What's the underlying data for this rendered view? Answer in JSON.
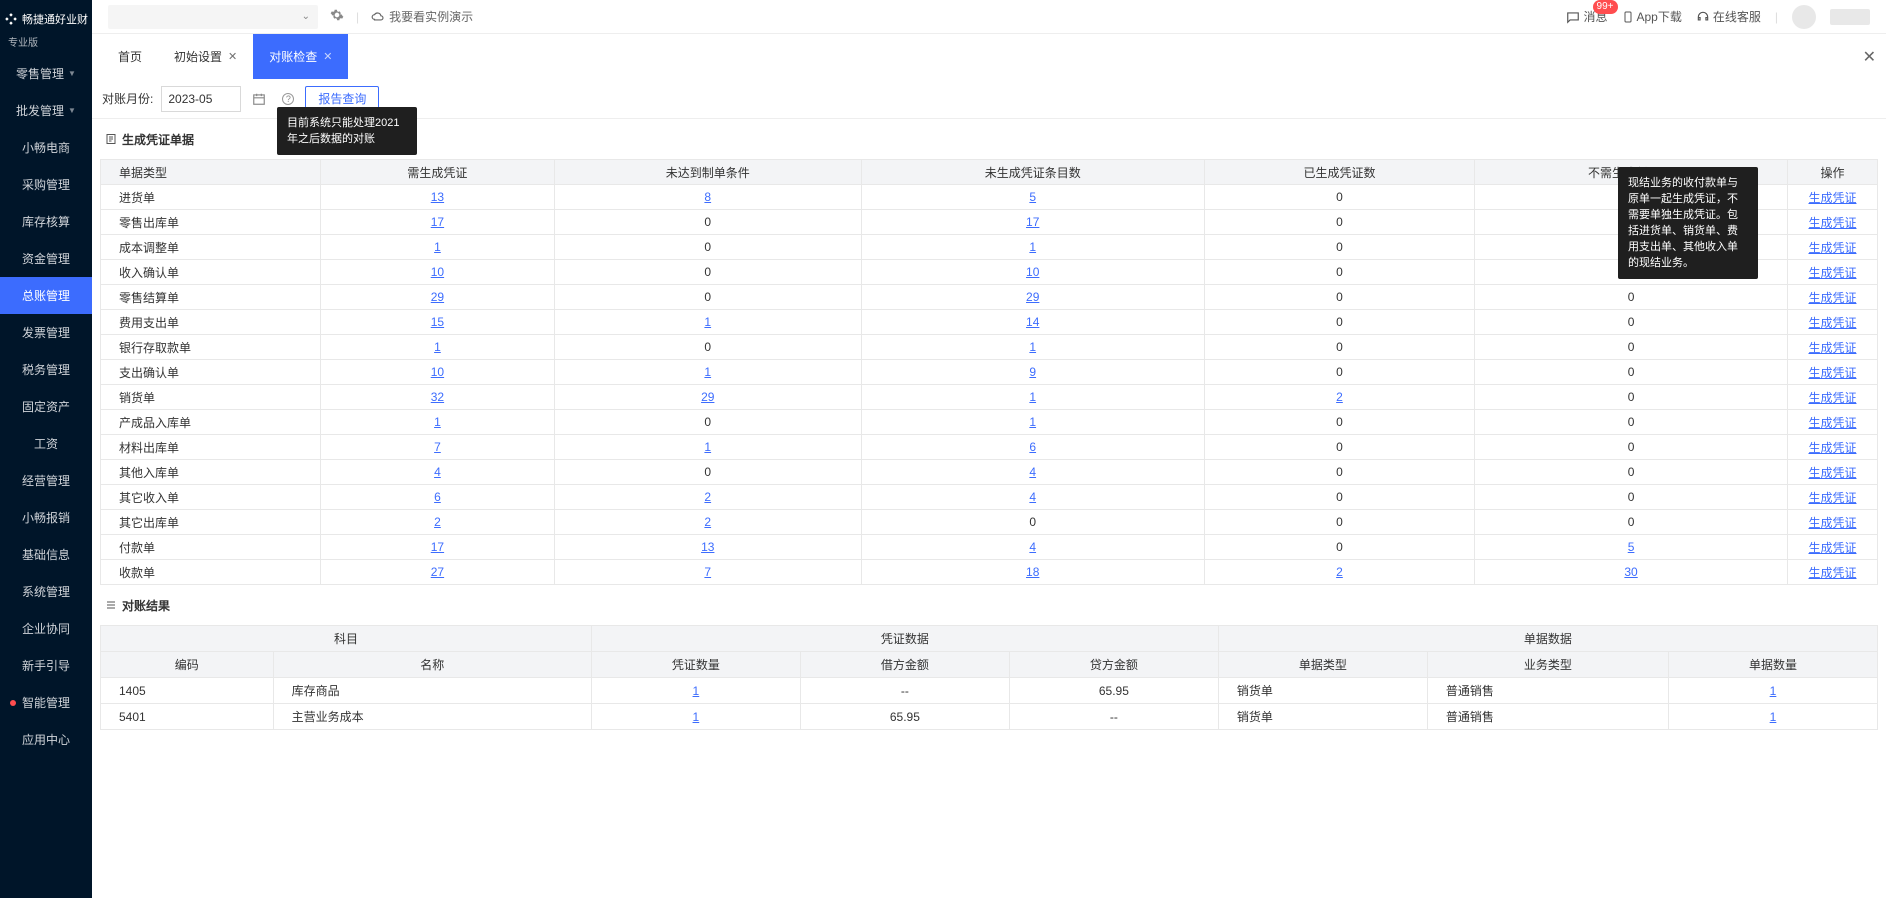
{
  "brand": {
    "name": "畅捷通好业财",
    "edition": "专业版"
  },
  "sidebar": [
    {
      "label": "零售管理",
      "caret": true
    },
    {
      "label": "批发管理",
      "caret": true
    },
    {
      "label": "小畅电商"
    },
    {
      "label": "采购管理"
    },
    {
      "label": "库存核算"
    },
    {
      "label": "资金管理"
    },
    {
      "label": "总账管理",
      "active": true
    },
    {
      "label": "发票管理"
    },
    {
      "label": "税务管理"
    },
    {
      "label": "固定资产"
    },
    {
      "label": "工资"
    },
    {
      "label": "经营管理"
    },
    {
      "label": "小畅报销"
    },
    {
      "label": "基础信息"
    },
    {
      "label": "系统管理"
    },
    {
      "label": "企业协同"
    },
    {
      "label": "新手引导"
    },
    {
      "label": "智能管理",
      "dot": true
    },
    {
      "label": "应用中心"
    }
  ],
  "topbar": {
    "demo": "我要看实例演示",
    "msg": "消息",
    "msg_badge": "99+",
    "app": "App下载",
    "service": "在线客服"
  },
  "tabs": {
    "home": "首页",
    "t1": "初始设置",
    "t2": "对账检查"
  },
  "toolbar": {
    "label": "对账月份:",
    "date": "2023-05",
    "report": "报告查询",
    "tip1": "目前系统只能处理2021年之后数据的对账",
    "tip2": "现结业务的收付款单与原单一起生成凭证，不需要单独生成凭证。包括进货单、销货单、费用支出单、其他收入单的现结业务。"
  },
  "section1": {
    "title": "生成凭证单据",
    "headers": [
      "单据类型",
      "需生成凭证",
      "未达到制单条件",
      "未生成凭证条目数",
      "已生成凭证数",
      "不需生成凭证",
      "操作"
    ],
    "action": "生成凭证",
    "rows": [
      {
        "type": "进货单",
        "need": "13",
        "cond": "8",
        "ungen": "5",
        "gen": "0",
        "noneed": "",
        "nl": true,
        "cl": true,
        "ul": true
      },
      {
        "type": "零售出库单",
        "need": "17",
        "cond": "0",
        "ungen": "17",
        "gen": "0",
        "noneed": "",
        "nl": true,
        "ul": true
      },
      {
        "type": "成本调整单",
        "need": "1",
        "cond": "0",
        "ungen": "1",
        "gen": "0",
        "noneed": "",
        "nl": true,
        "ul": true
      },
      {
        "type": "收入确认单",
        "need": "10",
        "cond": "0",
        "ungen": "10",
        "gen": "0",
        "noneed": "",
        "nl": true,
        "ul": true
      },
      {
        "type": "零售结算单",
        "need": "29",
        "cond": "0",
        "ungen": "29",
        "gen": "0",
        "noneed": "0",
        "nl": true,
        "ul": true
      },
      {
        "type": "费用支出单",
        "need": "15",
        "cond": "1",
        "ungen": "14",
        "gen": "0",
        "noneed": "0",
        "nl": true,
        "cl": true,
        "ul": true
      },
      {
        "type": "银行存取款单",
        "need": "1",
        "cond": "0",
        "ungen": "1",
        "gen": "0",
        "noneed": "0",
        "nl": true,
        "ul": true
      },
      {
        "type": "支出确认单",
        "need": "10",
        "cond": "1",
        "ungen": "9",
        "gen": "0",
        "noneed": "0",
        "nl": true,
        "cl": true,
        "ul": true
      },
      {
        "type": "销货单",
        "need": "32",
        "cond": "29",
        "ungen": "1",
        "gen": "2",
        "noneed": "0",
        "nl": true,
        "cl": true,
        "ul": true,
        "gl": true
      },
      {
        "type": "产成品入库单",
        "need": "1",
        "cond": "0",
        "ungen": "1",
        "gen": "0",
        "noneed": "0",
        "nl": true,
        "ul": true
      },
      {
        "type": "材料出库单",
        "need": "7",
        "cond": "1",
        "ungen": "6",
        "gen": "0",
        "noneed": "0",
        "nl": true,
        "cl": true,
        "ul": true
      },
      {
        "type": "其他入库单",
        "need": "4",
        "cond": "0",
        "ungen": "4",
        "gen": "0",
        "noneed": "0",
        "nl": true,
        "ul": true
      },
      {
        "type": "其它收入单",
        "need": "6",
        "cond": "2",
        "ungen": "4",
        "gen": "0",
        "noneed": "0",
        "nl": true,
        "cl": true,
        "ul": true
      },
      {
        "type": "其它出库单",
        "need": "2",
        "cond": "2",
        "ungen": "0",
        "gen": "0",
        "noneed": "0",
        "nl": true,
        "cl": true
      },
      {
        "type": "付款单",
        "need": "17",
        "cond": "13",
        "ungen": "4",
        "gen": "0",
        "noneed": "5",
        "nl": true,
        "cl": true,
        "ul": true,
        "nnl": true
      },
      {
        "type": "收款单",
        "need": "27",
        "cond": "7",
        "ungen": "18",
        "gen": "2",
        "noneed": "30",
        "nl": true,
        "cl": true,
        "ul": true,
        "gl": true,
        "nnl": true
      }
    ]
  },
  "section2": {
    "title": "对账结果",
    "h1": [
      "科目",
      "凭证数据",
      "单据数据"
    ],
    "h2": [
      "编码",
      "名称",
      "凭证数量",
      "借方金额",
      "贷方金额",
      "单据类型",
      "业务类型",
      "单据数量"
    ],
    "rows": [
      {
        "code": "1405",
        "name": "库存商品",
        "vc": "1",
        "dr": "--",
        "cr": "65.95",
        "dt": "销货单",
        "bt": "普通销售",
        "dc": "1"
      },
      {
        "code": "5401",
        "name": "主营业务成本",
        "vc": "1",
        "dr": "65.95",
        "cr": "--",
        "dt": "销货单",
        "bt": "普通销售",
        "dc": "1"
      }
    ]
  }
}
